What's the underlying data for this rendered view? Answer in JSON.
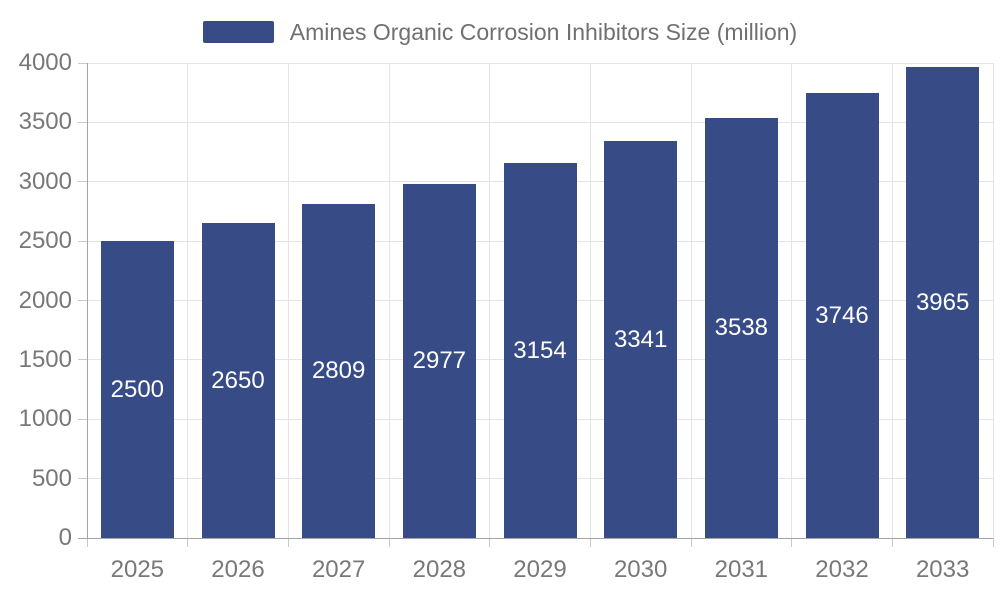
{
  "legend": {
    "label": "Amines Organic Corrosion Inhibitors Size (million)",
    "swatch_color": "#374b87"
  },
  "chart_data": {
    "type": "bar",
    "title": "Amines Organic Corrosion Inhibitors Size (million)",
    "categories": [
      "2025",
      "2026",
      "2027",
      "2028",
      "2029",
      "2030",
      "2031",
      "2032",
      "2033"
    ],
    "values": [
      2500,
      2650,
      2809,
      2977,
      3154,
      3341,
      3538,
      3746,
      3965
    ],
    "xlabel": "",
    "ylabel": "",
    "ylim": [
      0,
      4000
    ],
    "yticks": [
      0,
      500,
      1000,
      1500,
      2000,
      2500,
      3000,
      3500,
      4000
    ],
    "grid": true,
    "legend_position": "top-center",
    "bar_label_position": "inside-center",
    "colors": {
      "bar": "#374b87",
      "bar_label": "#ffffff",
      "axis_text": "#77787a",
      "legend_text": "#6e7072",
      "gridline": "#e4e4e4",
      "axis_line": "#a3a3a8",
      "tick": "#c9c9cd",
      "background": "#ffffff"
    }
  }
}
